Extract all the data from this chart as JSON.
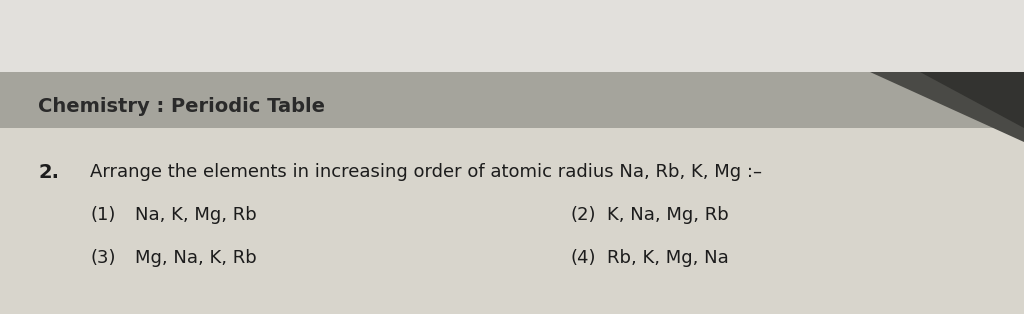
{
  "header_text": "Chemistry : Periodic Table",
  "header_text_color": "#2a2a2a",
  "top_bg_color": "#e8e8e8",
  "header_bg_color": "#a8a8a0",
  "header_dark_band_color": "#787870",
  "body_bg_color": "#d8d5cc",
  "triangle_color": "#4a4a46",
  "question_number": "2.",
  "question_text": "Arrange the elements in increasing order of atomic radius Na, Rb, K, Mg :–",
  "options": [
    {
      "num": "(1)",
      "text": "Na, K, Mg, Rb"
    },
    {
      "num": "(2)",
      "text": "K, Na, Mg, Rb"
    },
    {
      "num": "(3)",
      "text": "Mg, Na, K, Rb"
    },
    {
      "num": "(4)",
      "text": "Rb, K, Mg, Na"
    }
  ],
  "header_font_size": 14,
  "question_font_size": 13,
  "option_font_size": 13,
  "text_color": "#1c1c1c"
}
